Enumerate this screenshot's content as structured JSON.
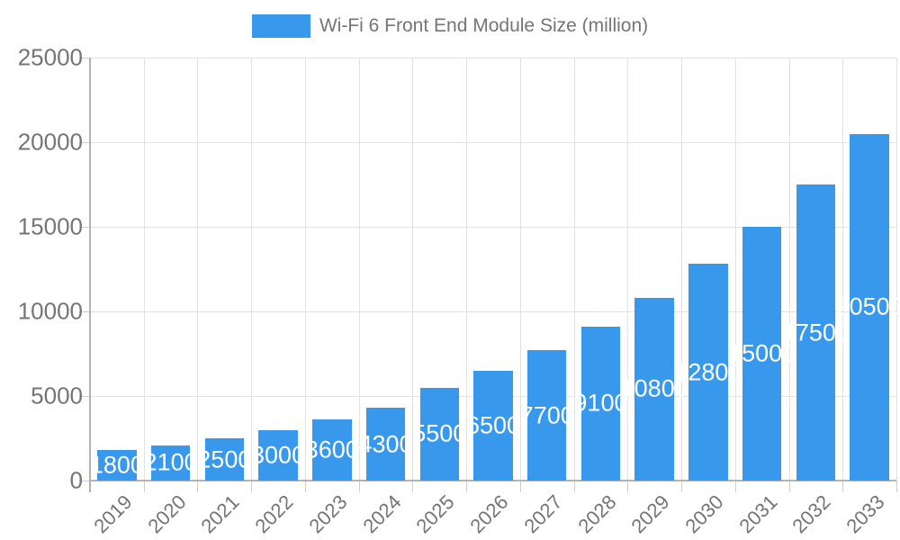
{
  "legend": {
    "label": "Wi-Fi 6 Front End Module Size (million)"
  },
  "colors": {
    "bar": "#3899EC",
    "bar_label": "#ffffff",
    "axis_text": "#757575",
    "grid_line": "#e2e2e2",
    "axis_line": "#b3b3b3",
    "tick_line": "#cfcfcf",
    "background": "#ffffff"
  },
  "chart_data": {
    "type": "bar",
    "title": "Wi-Fi 6 Front End Module Size (million)",
    "legend_position": "top",
    "categories": [
      "2019",
      "2020",
      "2021",
      "2022",
      "2023",
      "2024",
      "2025",
      "2026",
      "2027",
      "2028",
      "2029",
      "2030",
      "2031",
      "2032",
      "2033"
    ],
    "values": [
      1800,
      2100,
      2500,
      3000,
      3600,
      4300,
      5500,
      6500,
      7700,
      9100,
      10800,
      12800,
      15000,
      17500,
      20500
    ],
    "series": [
      {
        "name": "Wi-Fi 6 Front End Module Size (million)",
        "values": [
          1800,
          2100,
          2500,
          3000,
          3600,
          4300,
          5500,
          6500,
          7700,
          9100,
          10800,
          12800,
          15000,
          17500,
          20500
        ]
      }
    ],
    "xlabel": "",
    "ylabel": "",
    "ylim": [
      0,
      25000
    ],
    "yticks": [
      0,
      5000,
      10000,
      15000,
      20000,
      25000
    ],
    "grid": "horizontal and vertical, light gray",
    "value_labels": "inside center of bars, white",
    "x_tick_rotation": -45
  }
}
